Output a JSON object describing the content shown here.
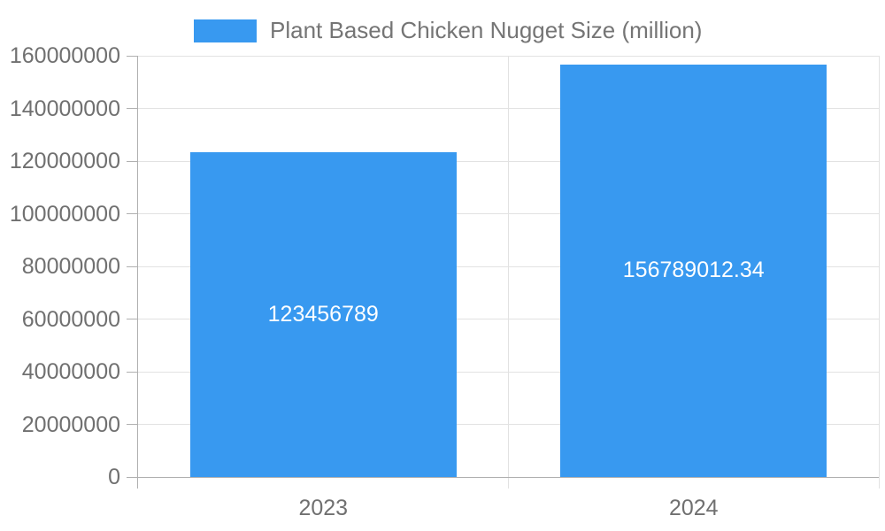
{
  "chart_data": {
    "type": "bar",
    "title": "Plant Based Chicken Nugget Size (million)",
    "categories": [
      "2023",
      "2024"
    ],
    "series": [
      {
        "name": "Plant Based Chicken Nugget Size (million)",
        "values": [
          123456789,
          156789012.34
        ],
        "data_labels": [
          "123456789",
          "156789012.34"
        ]
      }
    ],
    "ylim": [
      0,
      160000000
    ],
    "ytick_labels": [
      "0",
      "20000000",
      "40000000",
      "60000000",
      "80000000",
      "100000000",
      "120000000",
      "140000000",
      "160000000"
    ],
    "grid": "horizontal gridlines at every y tick; vertical gridlines at category boundaries; gridlines extend slightly below x axis as ticks",
    "legend_position": "top-center",
    "bar_label_position": "inside-center",
    "colors": {
      "bar": "#3899f0",
      "grid_line": "#e2e2e2",
      "axis_line": "#b0b0b0",
      "axis_text": "#707070",
      "legend_text": "#757575",
      "bar_label_text": "#ffffff",
      "background": "#ffffff"
    }
  }
}
